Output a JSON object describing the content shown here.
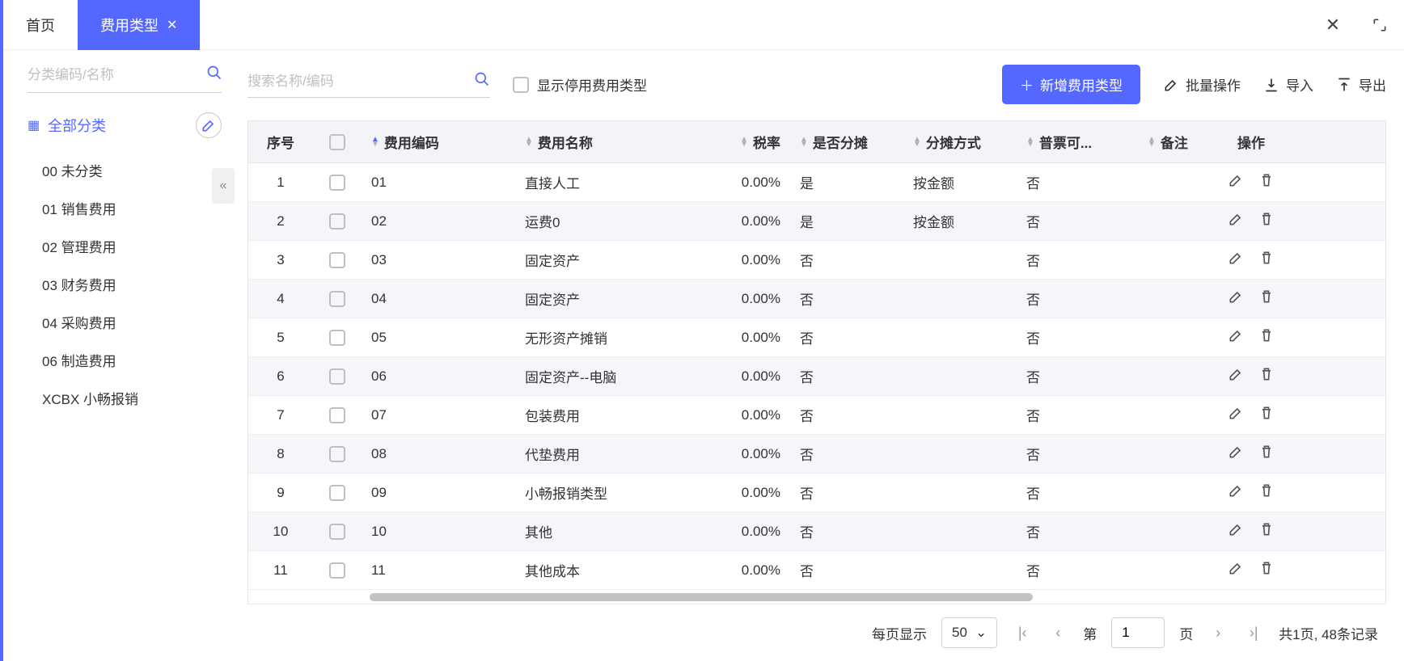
{
  "tabs": {
    "home": "首页",
    "active": "费用类型"
  },
  "sidebar": {
    "search_placeholder": "分类编码/名称",
    "all_label": "全部分类",
    "items": [
      {
        "label": "00 未分类"
      },
      {
        "label": "01 销售费用"
      },
      {
        "label": "02 管理费用"
      },
      {
        "label": "03 财务费用"
      },
      {
        "label": "04 采购费用"
      },
      {
        "label": "06 制造费用"
      },
      {
        "label": "XCBX 小畅报销"
      }
    ]
  },
  "toolbar": {
    "search_placeholder": "搜索名称/编码",
    "show_disabled": "显示停用费用类型",
    "add": "新增费用类型",
    "batch": "批量操作",
    "import": "导入",
    "export": "导出"
  },
  "columns": {
    "seq": "序号",
    "code": "费用编码",
    "name": "费用名称",
    "rate": "税率",
    "ft": "是否分摊",
    "fs": "分摊方式",
    "pk": "普票可...",
    "bz": "备注",
    "op": "操作"
  },
  "rows": [
    {
      "seq": "1",
      "code": "01",
      "name": "直接人工",
      "rate": "0.00%",
      "ft": "是",
      "fs": "按金额",
      "pk": "否"
    },
    {
      "seq": "2",
      "code": "02",
      "name": "运费0",
      "rate": "0.00%",
      "ft": "是",
      "fs": "按金额",
      "pk": "否"
    },
    {
      "seq": "3",
      "code": "03",
      "name": "固定资产",
      "rate": "0.00%",
      "ft": "否",
      "fs": "",
      "pk": "否"
    },
    {
      "seq": "4",
      "code": "04",
      "name": "固定资产",
      "rate": "0.00%",
      "ft": "否",
      "fs": "",
      "pk": "否"
    },
    {
      "seq": "5",
      "code": "05",
      "name": "无形资产摊销",
      "rate": "0.00%",
      "ft": "否",
      "fs": "",
      "pk": "否"
    },
    {
      "seq": "6",
      "code": "06",
      "name": "固定资产--电脑",
      "rate": "0.00%",
      "ft": "否",
      "fs": "",
      "pk": "否"
    },
    {
      "seq": "7",
      "code": "07",
      "name": "包装费用",
      "rate": "0.00%",
      "ft": "否",
      "fs": "",
      "pk": "否"
    },
    {
      "seq": "8",
      "code": "08",
      "name": "代垫费用",
      "rate": "0.00%",
      "ft": "否",
      "fs": "",
      "pk": "否"
    },
    {
      "seq": "9",
      "code": "09",
      "name": "小畅报销类型",
      "rate": "0.00%",
      "ft": "否",
      "fs": "",
      "pk": "否"
    },
    {
      "seq": "10",
      "code": "10",
      "name": "其他",
      "rate": "0.00%",
      "ft": "否",
      "fs": "",
      "pk": "否"
    },
    {
      "seq": "11",
      "code": "11",
      "name": "其他成本",
      "rate": "0.00%",
      "ft": "否",
      "fs": "",
      "pk": "否"
    }
  ],
  "pager": {
    "per_page_label": "每页显示",
    "per_page_value": "50",
    "page_prefix": "第",
    "page_value": "1",
    "page_suffix": "页",
    "summary": "共1页, 48条记录"
  },
  "colors": {
    "primary": "#5468ff",
    "header_bg": "#f2f4f8",
    "row_alt": "#f5f6fa",
    "border": "#e5e5e5",
    "text": "#333333",
    "placeholder": "#bfbfbf"
  }
}
